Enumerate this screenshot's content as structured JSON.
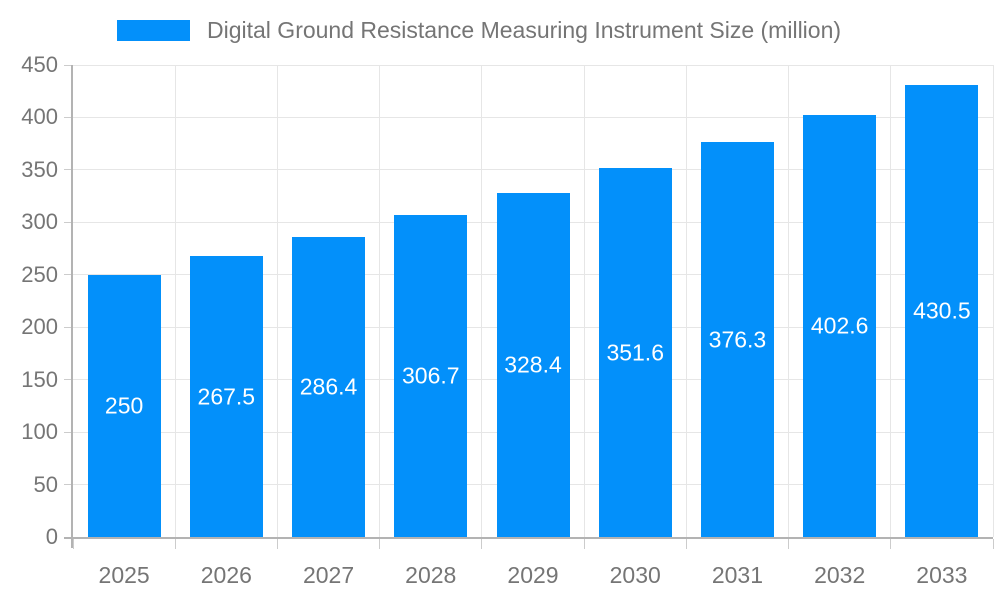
{
  "chart_data": {
    "type": "bar",
    "title": "Digital Ground Resistance Measuring Instrument Size (million)",
    "categories": [
      "2025",
      "2026",
      "2027",
      "2028",
      "2029",
      "2030",
      "2031",
      "2032",
      "2033"
    ],
    "values": [
      250,
      267.5,
      286.4,
      306.7,
      328.4,
      351.6,
      376.3,
      402.6,
      430.5
    ],
    "value_labels": [
      "250",
      "267.5",
      "286.4",
      "306.7",
      "328.4",
      "351.6",
      "376.3",
      "402.6",
      "430.5"
    ],
    "yticks": [
      0,
      50,
      100,
      150,
      200,
      250,
      300,
      350,
      400,
      450
    ],
    "ylim": [
      0,
      450
    ],
    "xlabel": "",
    "ylabel": "",
    "grid": true,
    "legend_position": "top",
    "colors": {
      "bar": "#0390fa",
      "bar_label": "#ffffff",
      "axis_text": "#757575",
      "legend_text": "#757575",
      "gridline": "#e6e6e6",
      "tick": "#cccccc",
      "axis_line": "#b3b3b3",
      "background": "#ffffff"
    }
  }
}
